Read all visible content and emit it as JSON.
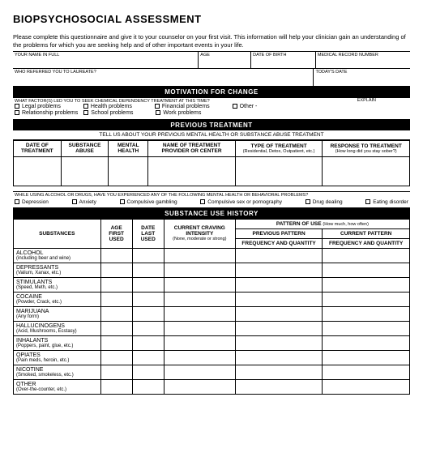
{
  "title": "BIOPSYCHOSOCIAL ASSESSMENT",
  "intro": "Please complete this questionnaire and give it to your counselor on your first visit. This information will help your clinician gain an understanding of the problems for which you are seeking help and of other important events in your life.",
  "fields": {
    "name": "YOUR NAME IN FULL",
    "age": "AGE",
    "dob": "DATE OF BIRTH",
    "mrn": "MEDICAL RECORD NUMBER",
    "referred": "WHO REFERRED YOU TO LAUREATE?",
    "today": "TODAY'S DATE"
  },
  "sections": {
    "motivation": "MOTIVATION FOR CHANGE",
    "previous": "PREVIOUS TREATMENT",
    "substance": "SUBSTANCE USE HISTORY"
  },
  "factors": {
    "label": "WHAT FACTOR(S) LED YOU TO SEEK CHEMICAL DEPENDENCY TREATMENT AT THIS TIME?",
    "explain": "EXPLAIN",
    "options": [
      [
        "Legal problems",
        "Health problems",
        "Financial problems",
        "Other -"
      ],
      [
        "Relationship problems",
        "School problems",
        "Work problems"
      ]
    ]
  },
  "previous_sub": "TELL US ABOUT YOUR PREVIOUS MENTAL HEALTH OR SUBSTANCE ABUSE TREATMENT",
  "prev_cols": {
    "date": "DATE OF TREATMENT",
    "abuse": "SUBSTANCE ABUSE",
    "mental": "MENTAL HEALTH",
    "provider": "NAME OF TREATMENT PROVIDER OR CENTER",
    "type": "TYPE OF TREATMENT",
    "type_sub": "(Residential, Detox, Outpatient, etc.)",
    "response": "RESPONSE TO TREATMENT",
    "response_sub": "(How long did you stay sober?)"
  },
  "behavioral": {
    "label": "WHILE USING ALCOHOL OR DRUGS, HAVE YOU EXPERIENCED ANY OF THE FOLLOWING MENTAL HEALTH OR BEHAVIORAL PROBLEMS?",
    "options": [
      "Depression",
      "Anxiety",
      "Compulsive gambling",
      "Compulsive sex or pornography",
      "Drug dealing",
      "Eating disorder"
    ]
  },
  "substance_cols": {
    "substances": "SUBSTANCES",
    "age_first": "AGE FIRST USED",
    "date_last": "DATE LAST USED",
    "craving": "CURRENT CRAVING INTENSITY",
    "craving_sub": "(None, moderate or strong)",
    "pattern": "PATTERN OF USE",
    "pattern_sub": "(How much, how often)",
    "prev_pattern": "PREVIOUS PATTERN",
    "curr_pattern": "CURRENT PATTERN",
    "freq": "FREQUENCY AND QUANTITY"
  },
  "substances": [
    {
      "name": "ALCOHOL",
      "example": "(including beer and wine)"
    },
    {
      "name": "DEPRESSANTS",
      "example": "(Valium, Xanax, etc.)"
    },
    {
      "name": "STIMULANTS",
      "example": "(Speed, Meth, etc.)"
    },
    {
      "name": "COCAINE",
      "example": "(Powder, Crack, etc.)"
    },
    {
      "name": "MARIJUANA",
      "example": "(Any form)"
    },
    {
      "name": "HALLUCINOGENS",
      "example": "(Acid, Mushrooms, Ecstasy)"
    },
    {
      "name": "INHALANTS",
      "example": "(Poppers, paint, glue, etc.)"
    },
    {
      "name": "OPIATES",
      "example": "(Pain meds, heroin, etc.)"
    },
    {
      "name": "NICOTINE",
      "example": "(Smoked, smokeless, etc.)"
    },
    {
      "name": "OTHER",
      "example": "(Over-the-counter, etc.)"
    }
  ],
  "colors": {
    "background": "#ffffff",
    "text": "#000000",
    "header_bg": "#000000",
    "header_text": "#ffffff",
    "border": "#000000"
  }
}
